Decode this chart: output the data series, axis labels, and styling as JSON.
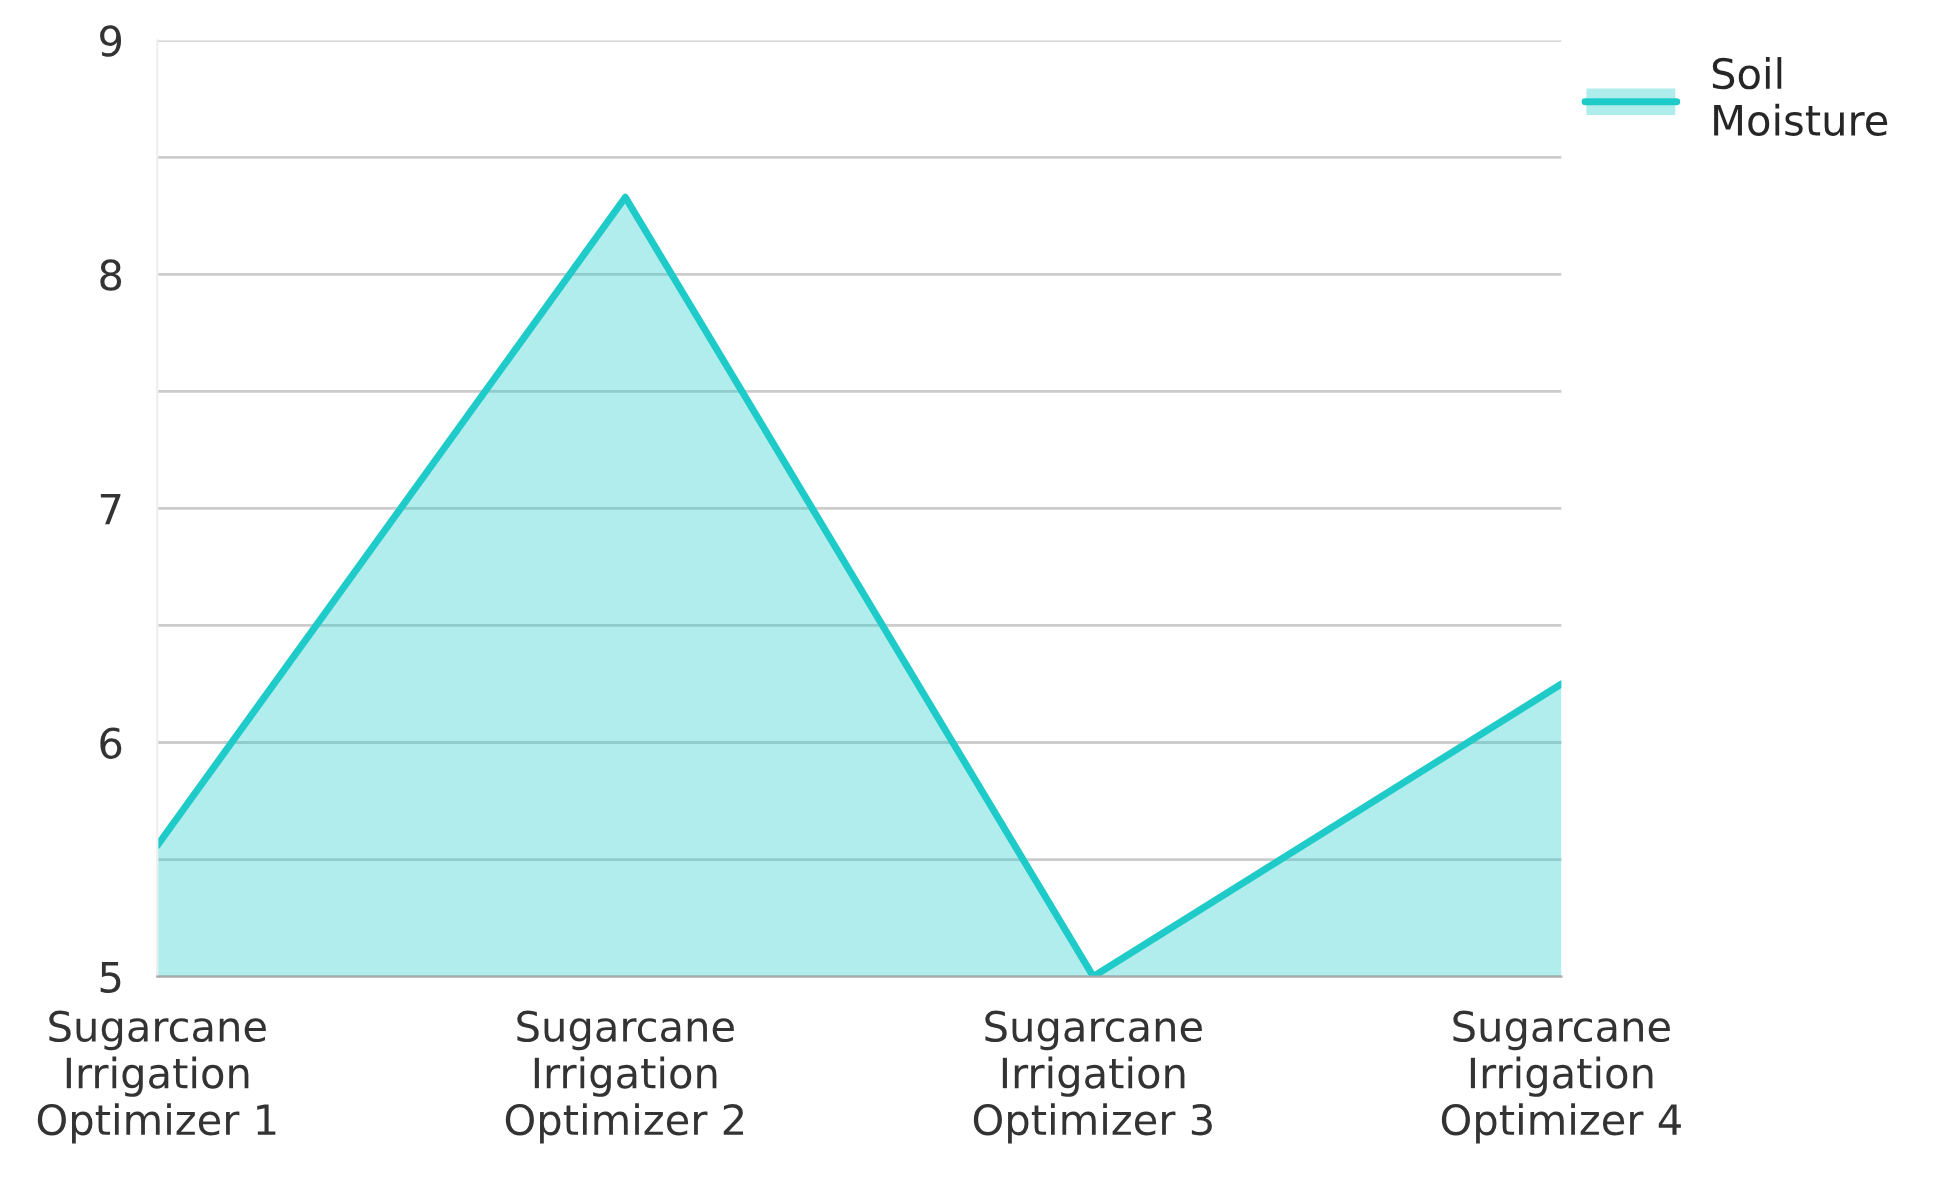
{
  "chart_data": {
    "type": "area",
    "categories": [
      "Sugarcane\nIrrigation\nOptimizer 1",
      "Sugarcane\nIrrigation\nOptimizer 2",
      "Sugarcane\nIrrigation\nOptimizer 3",
      "Sugarcane\nIrrigation\nOptimizer 4"
    ],
    "series": [
      {
        "name": "Soil\nMoisture",
        "color": "#1ecbc9",
        "values": [
          5.56,
          8.33,
          5.0,
          6.25
        ]
      }
    ],
    "ylim": [
      5,
      9
    ],
    "yticks": [
      5,
      {
        "value": 5.5,
        "label": null
      },
      6,
      {
        "value": 6.5,
        "label": null
      },
      7,
      {
        "value": 7.5,
        "label": null
      },
      8,
      {
        "value": 8.5,
        "label": null
      },
      9
    ],
    "grid": "y",
    "legend": "top right",
    "marker": "none",
    "line_style": "solid"
  }
}
